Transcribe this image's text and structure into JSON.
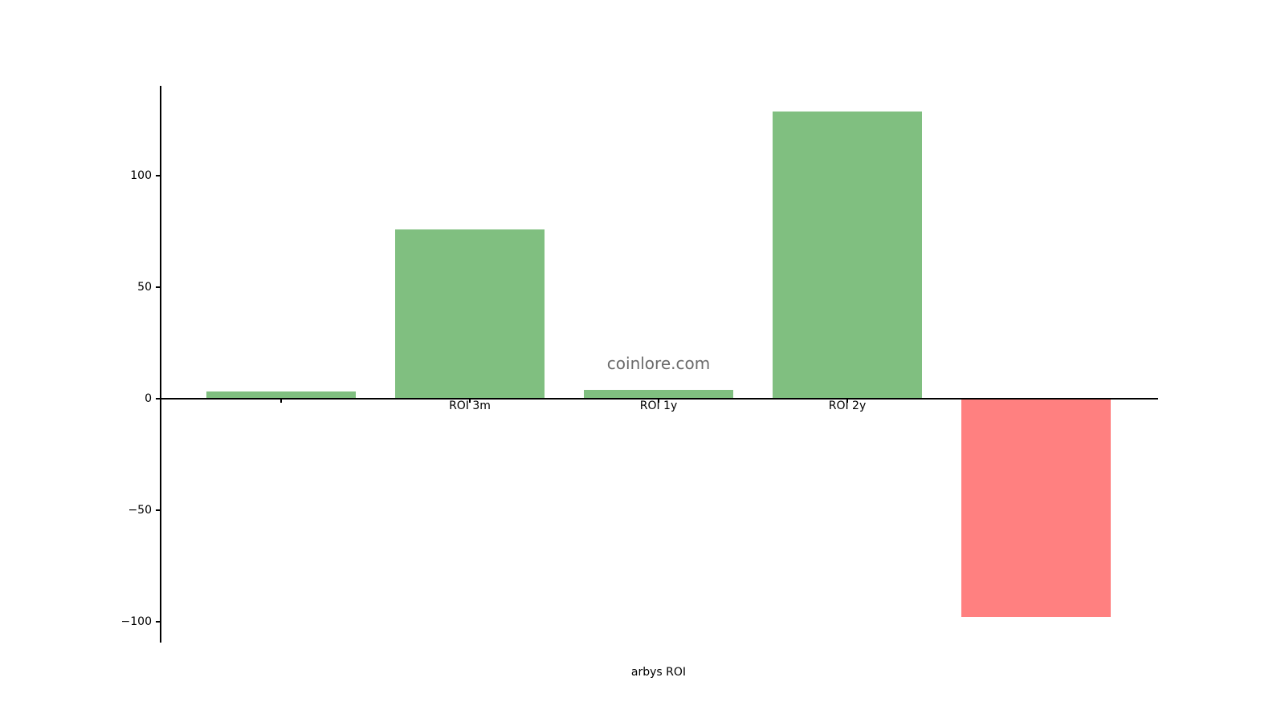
{
  "page": {
    "background_color": "#ffffff"
  },
  "chart_data": {
    "type": "bar",
    "title": "",
    "xlabel": "arbys ROI",
    "ylabel": "",
    "categories": [
      "",
      "ROI 3m",
      "ROI 1y",
      "ROI 2y",
      ""
    ],
    "values": [
      3.4,
      75.9,
      4,
      129,
      -98
    ],
    "yticks": [
      100,
      50,
      0,
      -50,
      -100
    ],
    "ylim": [
      -109.5,
      140.5
    ],
    "grid": false,
    "legend_position": "none",
    "positive_color": "#80bf80",
    "negative_color": "#ff8080",
    "axis_color": "#000000",
    "tick_label_color": "#000000",
    "watermark": "coinlore.com",
    "watermark_color": "#6b6b6b"
  }
}
